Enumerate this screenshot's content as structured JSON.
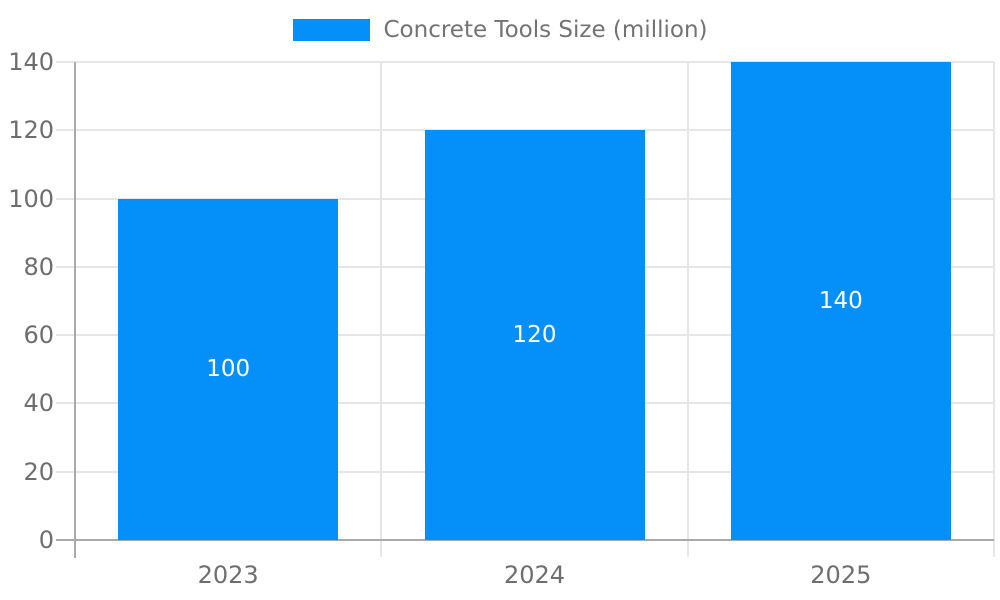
{
  "legend": {
    "label": "Concrete Tools Size (million)"
  },
  "chart_data": {
    "type": "bar",
    "title": "Concrete Tools Size (million)",
    "categories": [
      "2023",
      "2024",
      "2025"
    ],
    "series": [
      {
        "name": "Concrete Tools Size (million)",
        "values": [
          100,
          120,
          140
        ]
      }
    ],
    "data_labels": [
      "100",
      "120",
      "140"
    ],
    "xlabel": "",
    "ylabel": "",
    "ylim": [
      0,
      140
    ],
    "yticks": [
      0,
      20,
      40,
      60,
      80,
      100,
      120,
      140
    ],
    "grid": true,
    "legend_position": "top-center",
    "colors": {
      "bar": "#0590F9",
      "axis": "#A9A9A9",
      "gridline": "#E6E6E6",
      "tick_text": "#6E6E6E",
      "legend_text": "#737373",
      "data_label_text": "#FFFFFF",
      "background": "#FFFFFF"
    }
  }
}
